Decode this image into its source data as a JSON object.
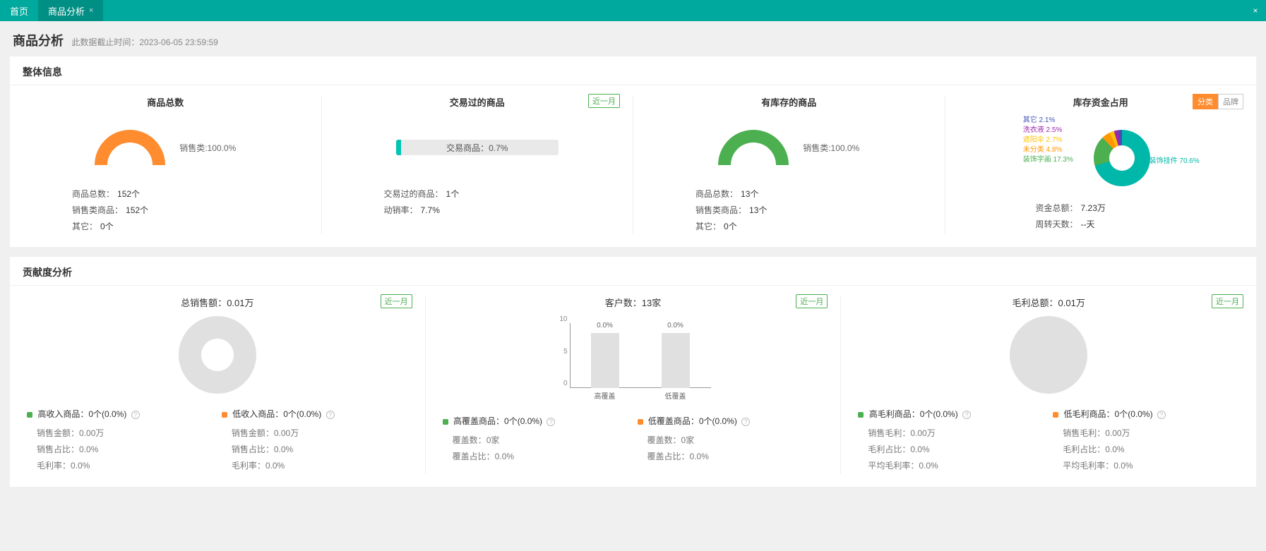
{
  "tabs": {
    "home": "首页",
    "active": "商品分析"
  },
  "header": {
    "title": "商品分析",
    "sub_prefix": "此数据截止时间：",
    "cutoff_time": "2023-06-05 23:59:59"
  },
  "section_overall": {
    "title": "整体信息",
    "cols": {
      "total": {
        "title": "商品总数",
        "gauge_color": "#ff8c2e",
        "gauge_percent": 100,
        "side_label": "销售类:100.0%",
        "stats": [
          {
            "lbl": "商品总数：",
            "val": "152个"
          },
          {
            "lbl": "销售类商品：",
            "val": "152个"
          },
          {
            "lbl": "其它：",
            "val": "0个"
          }
        ]
      },
      "traded": {
        "title": "交易过的商品",
        "badge": "近一月",
        "progress_text": "交易商品：0.7%",
        "progress_percent": 3,
        "progress_fill_color": "#00c4b4",
        "progress_bg_color": "#e9e9e9",
        "stats": [
          {
            "lbl": "交易过的商品：",
            "val": "1个"
          },
          {
            "lbl": "动销率：",
            "val": "7.7%"
          }
        ]
      },
      "instock": {
        "title": "有库存的商品",
        "gauge_color": "#4caf50",
        "gauge_percent": 100,
        "side_label": "销售类:100.0%",
        "stats": [
          {
            "lbl": "商品总数：",
            "val": "13个"
          },
          {
            "lbl": "销售类商品：",
            "val": "13个"
          },
          {
            "lbl": "其它：",
            "val": "0个"
          }
        ]
      },
      "capital": {
        "title": "库存资金占用",
        "toggle": {
          "active": "分类",
          "inactive": "品牌"
        },
        "pie": {
          "slices": [
            {
              "label": "装饰挂件 70.6%",
              "color": "#00b8a9",
              "pct": 70.6
            },
            {
              "label": "装饰字画 17.3%",
              "color": "#4caf50",
              "pct": 17.3
            },
            {
              "label": "未分类 4.8%",
              "color": "#ff9800",
              "pct": 4.8
            },
            {
              "label": "遮阳伞 2.7%",
              "color": "#ffc107",
              "pct": 2.7
            },
            {
              "label": "洗衣液 2.5%",
              "color": "#9c27b0",
              "pct": 2.5
            },
            {
              "label": "其它 2.1%",
              "color": "#3f51b5",
              "pct": 2.1
            }
          ]
        },
        "stats": [
          {
            "lbl": "资金总额：",
            "val": "7.23万"
          },
          {
            "lbl": "周转天数：",
            "val": "--天"
          }
        ]
      }
    }
  },
  "section_contrib": {
    "title": "贡献度分析",
    "badge": "近一月",
    "cols": {
      "sales": {
        "title_label": "总销售额：",
        "title_value": "0.01万",
        "chart_type": "grey-donut",
        "left": {
          "legend_color": "green",
          "legend": "高收入商品：",
          "legend_val": "0个(0.0%)",
          "lines": [
            {
              "lbl": "销售金额：",
              "val": "0.00万"
            },
            {
              "lbl": "销售占比：",
              "val": "0.0%"
            },
            {
              "lbl": "毛利率：",
              "val": "0.0%"
            }
          ]
        },
        "right": {
          "legend_color": "orange",
          "legend": "低收入商品：",
          "legend_val": "0个(0.0%)",
          "lines": [
            {
              "lbl": "销售金额：",
              "val": "0.00万"
            },
            {
              "lbl": "销售占比：",
              "val": "0.0%"
            },
            {
              "lbl": "毛利率：",
              "val": "0.0%"
            }
          ]
        }
      },
      "customers": {
        "title_label": "客户数：",
        "title_value": "13家",
        "chart_type": "bar",
        "bar_chart": {
          "yticks": [
            0,
            5,
            10
          ],
          "bars": [
            {
              "x": "高覆盖",
              "top": "0.0%",
              "h": 85
            },
            {
              "x": "低覆盖",
              "top": "0.0%",
              "h": 85
            }
          ],
          "bar_color": "#e0e0e0"
        },
        "left": {
          "legend_color": "green",
          "legend": "高覆盖商品：",
          "legend_val": "0个(0.0%)",
          "lines": [
            {
              "lbl": "覆盖数：",
              "val": "0家"
            },
            {
              "lbl": "覆盖占比：",
              "val": "0.0%"
            }
          ]
        },
        "right": {
          "legend_color": "orange",
          "legend": "低覆盖商品：",
          "legend_val": "0个(0.0%)",
          "lines": [
            {
              "lbl": "覆盖数：",
              "val": "0家"
            },
            {
              "lbl": "覆盖占比：",
              "val": "0.0%"
            }
          ]
        }
      },
      "profit": {
        "title_label": "毛利总额：",
        "title_value": "0.01万",
        "chart_type": "grey-circle",
        "left": {
          "legend_color": "green",
          "legend": "高毛利商品：",
          "legend_val": "0个(0.0%)",
          "lines": [
            {
              "lbl": "销售毛利：",
              "val": "0.00万"
            },
            {
              "lbl": "毛利占比：",
              "val": "0.0%"
            },
            {
              "lbl": "平均毛利率：",
              "val": "0.0%"
            }
          ]
        },
        "right": {
          "legend_color": "orange",
          "legend": "低毛利商品：",
          "legend_val": "0个(0.0%)",
          "lines": [
            {
              "lbl": "销售毛利：",
              "val": "0.00万"
            },
            {
              "lbl": "毛利占比：",
              "val": "0.0%"
            },
            {
              "lbl": "平均毛利率：",
              "val": "0.0%"
            }
          ]
        }
      }
    }
  }
}
